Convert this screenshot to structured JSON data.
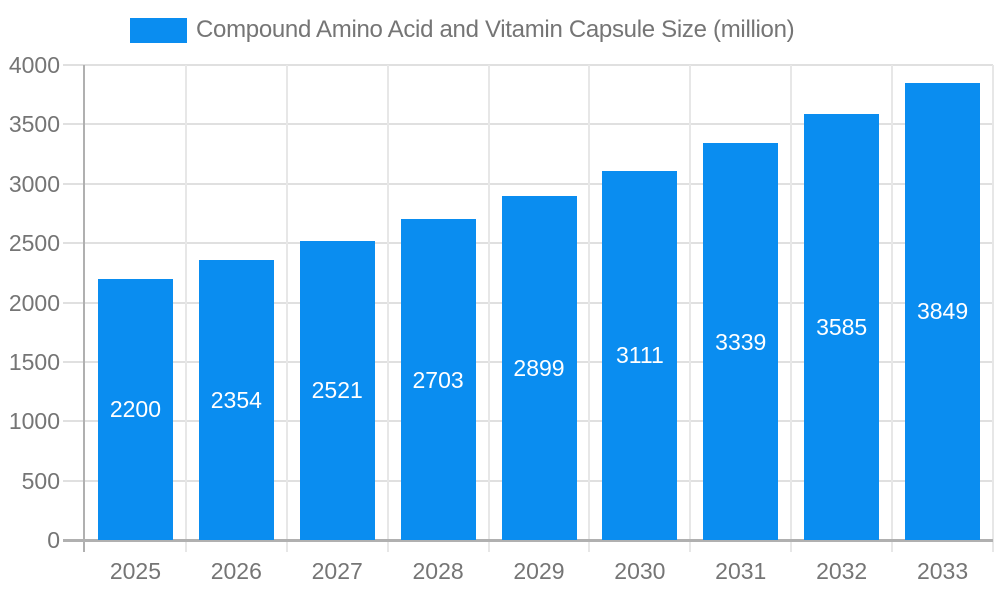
{
  "legend": {
    "label": "Compound Amino Acid and Vitamin Capsule Size (million)"
  },
  "chart_data": {
    "type": "bar",
    "title": "Compound Amino Acid and Vitamin Capsule Size (million)",
    "categories": [
      "2025",
      "2026",
      "2027",
      "2028",
      "2029",
      "2030",
      "2031",
      "2032",
      "2033"
    ],
    "values": [
      2200,
      2354,
      2521,
      2703,
      2899,
      3111,
      3339,
      3585,
      3849
    ],
    "xlabel": "",
    "ylabel": "",
    "ylim": [
      0,
      4000
    ],
    "yticks": [
      0,
      500,
      1000,
      1500,
      2000,
      2500,
      3000,
      3500,
      4000
    ],
    "grid": true,
    "legend_position": "top",
    "value_labels_inside_bars": true
  },
  "colors": {
    "background": "#ffffff",
    "bar": "#0a8df0",
    "axis_line": "#b0b0b0",
    "gridline_horizontal": "#e0e0e0",
    "gridline_vertical": "#e7e7e7",
    "tick_label": "#757575",
    "title_text": "#757575",
    "value_label": "#ffffff"
  }
}
